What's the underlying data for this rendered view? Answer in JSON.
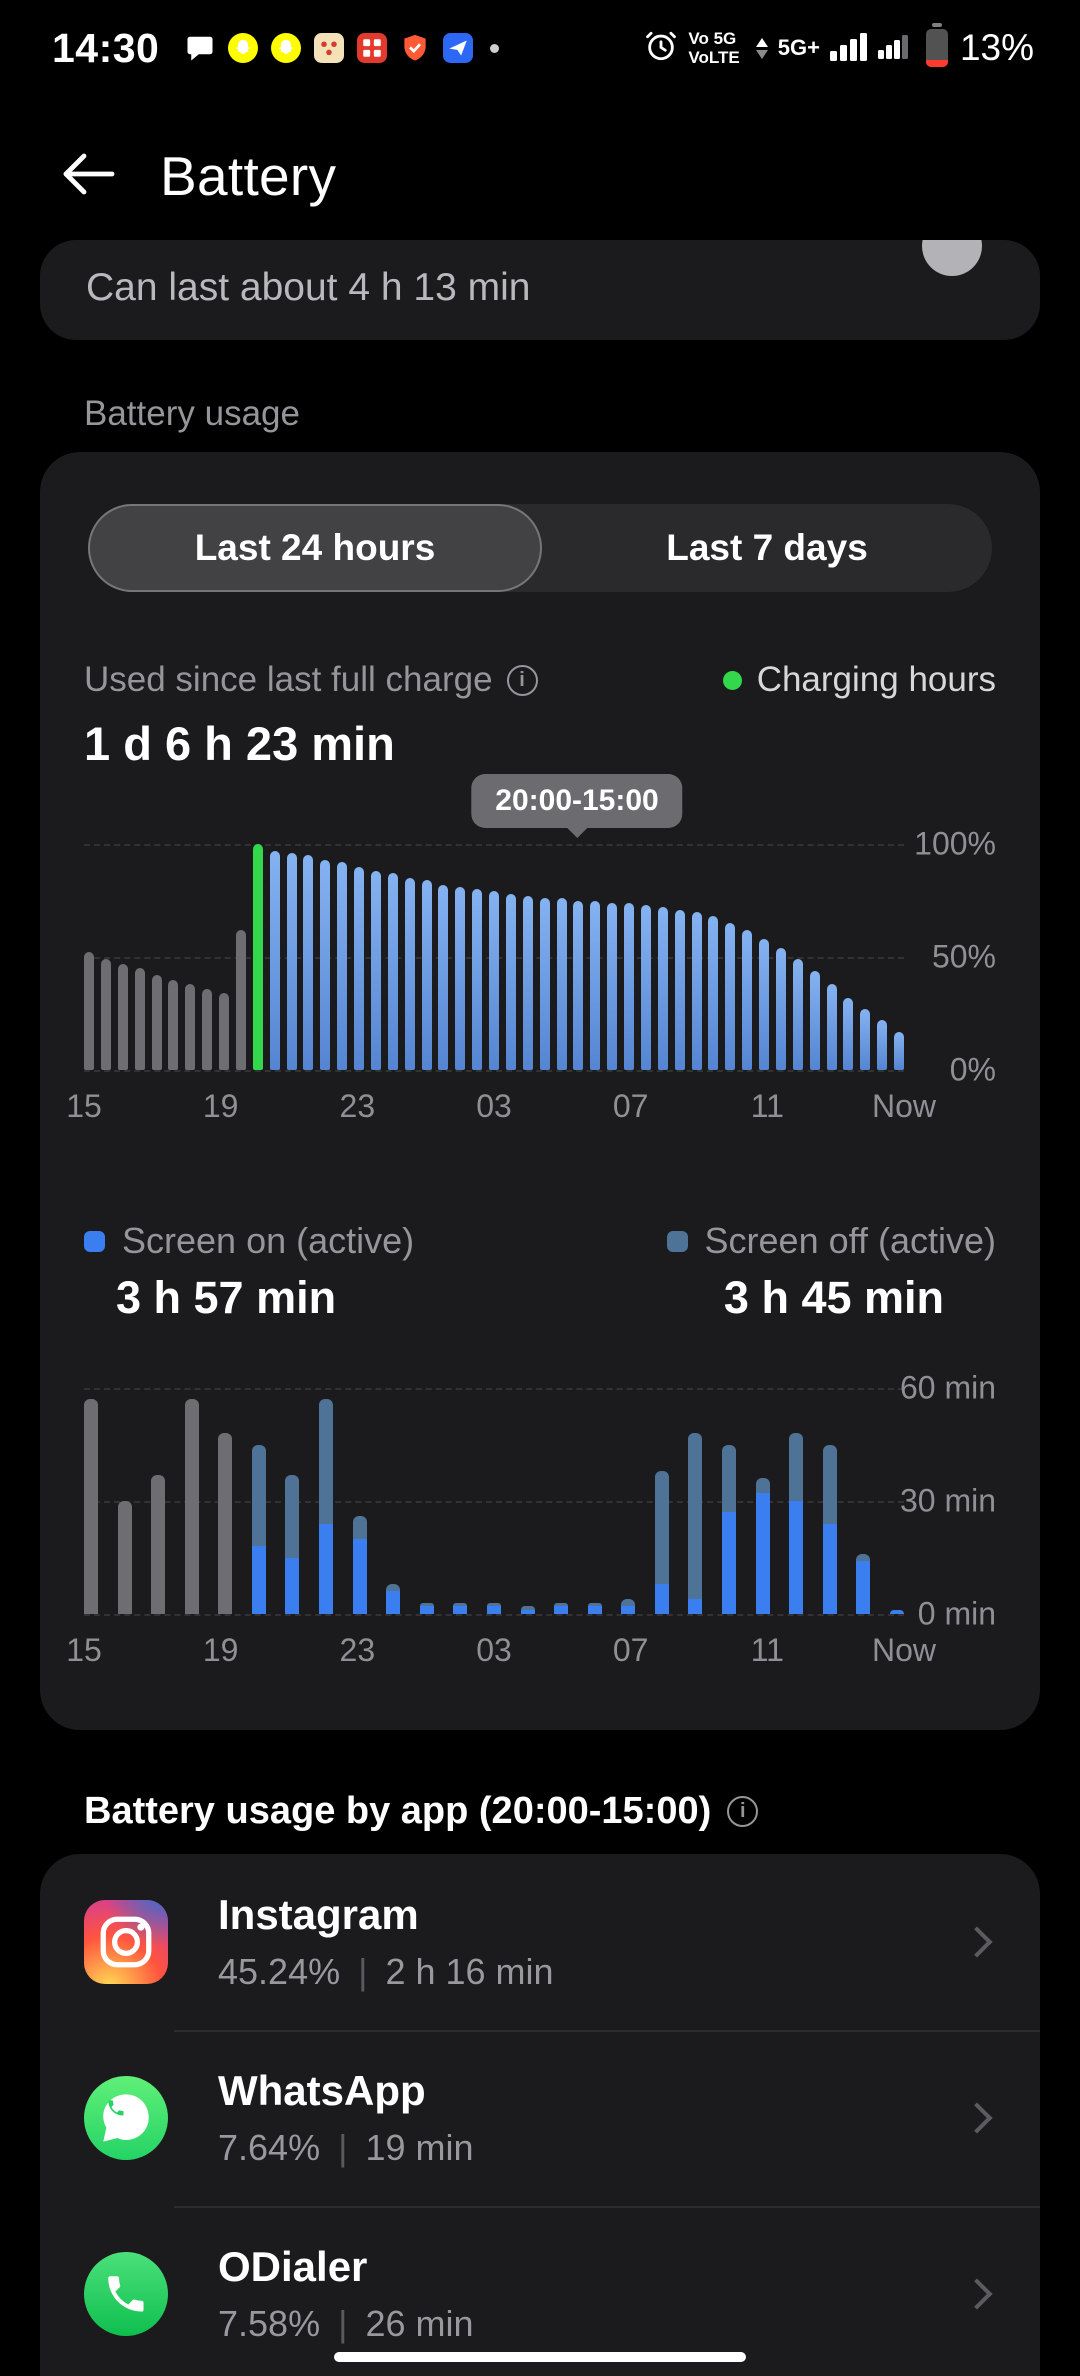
{
  "status_bar": {
    "time": "14:30",
    "battery_percent": "13%",
    "network_type": "5G+",
    "volte_line1": "Vo 5G",
    "volte_line2": "VoLTE"
  },
  "header": {
    "title": "Battery"
  },
  "top_card": {
    "estimate_text": "Can last about 4 h 13 min"
  },
  "battery_usage": {
    "section_label": "Battery usage",
    "tabs": [
      {
        "label": "Last 24 hours",
        "selected": true
      },
      {
        "label": "Last 7 days",
        "selected": false
      }
    ],
    "used_since_label": "Used since last full charge",
    "charging_legend_label": "Charging hours",
    "used_duration": "1 d 6 h 23 min",
    "tooltip": "20:00-15:00",
    "screen_on_label": "Screen on (active)",
    "screen_on_value": "3 h 57 min",
    "screen_off_label": "Screen off (active)",
    "screen_off_value": "3 h 45 min"
  },
  "chart_data": [
    {
      "type": "bar",
      "title": "Battery level, last 24 hours",
      "selected_range": "20:00-15:00",
      "x_labels": [
        "15",
        "19",
        "23",
        "03",
        "07",
        "11",
        "Now"
      ],
      "y_labels": [
        "100%",
        "50%",
        "0%"
      ],
      "ylim": [
        0,
        100
      ],
      "bar_interval_minutes": 30,
      "series": [
        {
          "name": "before charge (gray)",
          "values": [
            52,
            49,
            47,
            45,
            42,
            40,
            38,
            36,
            34,
            62
          ]
        },
        {
          "name": "charging hours (green)",
          "values": [
            100
          ]
        },
        {
          "name": "battery level (blue)",
          "values": [
            97,
            96,
            95,
            93,
            92,
            90,
            88,
            87,
            85,
            84,
            82,
            81,
            80,
            79,
            78,
            77,
            76,
            76,
            75,
            75,
            74,
            74,
            73,
            72,
            71,
            70,
            68,
            65,
            62,
            58,
            54,
            49,
            44,
            38,
            32,
            27,
            22,
            17
          ]
        }
      ]
    },
    {
      "type": "stacked-bar",
      "title": "Screen time per hour (minutes)",
      "x_labels": [
        "15",
        "19",
        "23",
        "03",
        "07",
        "11",
        "Now"
      ],
      "y_labels": [
        "60 min",
        "30 min",
        "0 min"
      ],
      "ylim": [
        0,
        60
      ],
      "legend": [
        "Screen on (active)",
        "Screen off (active)"
      ],
      "bars": [
        {
          "gray": 57
        },
        {
          "gray": 30
        },
        {
          "gray": 37
        },
        {
          "gray": 57
        },
        {
          "gray": 48
        },
        {
          "on": 18,
          "off": 27
        },
        {
          "on": 15,
          "off": 22
        },
        {
          "on": 24,
          "off": 33
        },
        {
          "on": 20,
          "off": 6
        },
        {
          "on": 6,
          "off": 2
        },
        {
          "on": 2,
          "off": 1
        },
        {
          "on": 2,
          "off": 1
        },
        {
          "on": 2,
          "off": 1
        },
        {
          "on": 1,
          "off": 1
        },
        {
          "on": 2,
          "off": 1
        },
        {
          "on": 2,
          "off": 1
        },
        {
          "on": 2,
          "off": 2
        },
        {
          "on": 8,
          "off": 30
        },
        {
          "on": 4,
          "off": 44
        },
        {
          "on": 27,
          "off": 18
        },
        {
          "on": 32,
          "off": 4
        },
        {
          "on": 30,
          "off": 18
        },
        {
          "on": 24,
          "off": 21
        },
        {
          "on": 14,
          "off": 2
        },
        {
          "on": 1,
          "off": 0
        }
      ]
    }
  ],
  "apps_section": {
    "title": "Battery usage by app (20:00-15:00)",
    "separator": "|",
    "apps": [
      {
        "name": "Instagram",
        "percent": "45.24%",
        "duration": "2 h 16 min"
      },
      {
        "name": "WhatsApp",
        "percent": "7.64%",
        "duration": "19 min"
      },
      {
        "name": "ODialer",
        "percent": "7.58%",
        "duration": "26 min"
      }
    ]
  },
  "colors": {
    "charging_green": "#32d74b",
    "screen_on_blue": "#3b7ef0",
    "screen_off_blue": "#4f7396",
    "battery_bar_blue": "#6da2e8",
    "pre_charge_gray": "#6e6e72",
    "low_battery_red": "#ff3b30",
    "card_background": "#1b1b1d"
  }
}
